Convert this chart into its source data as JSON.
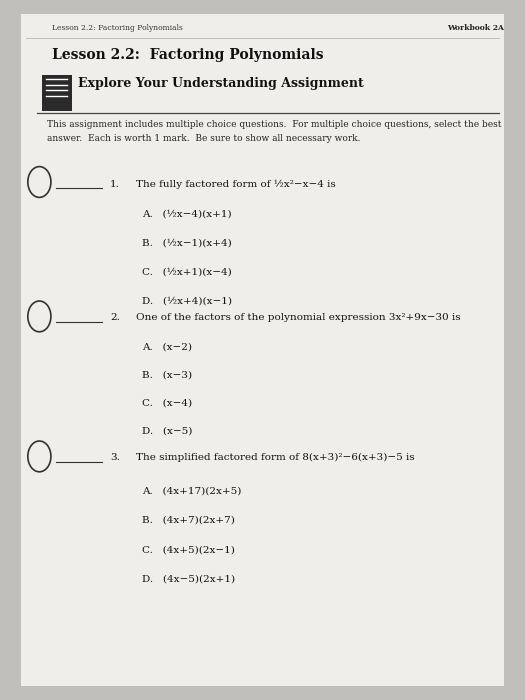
{
  "bg_color": "#c0bfbc",
  "paper_color": "#f0eeea",
  "header_text_left": "Lesson 2.2: Factoring Polynomials",
  "header_text_right": "Workbook 2A",
  "title": "Lesson 2.2:  Factoring Polynomials",
  "section_title": "Explore Your Understanding Assignment",
  "intro_text": "This assignment includes multiple choice questions.  For multiple choice questions, select the best\nanswer.  Each is worth 1 mark.  Be sure to show all necessary work.",
  "q1_num": "1.",
  "q1_text": "The fully factored form of ½x²−x−4 is",
  "q1_choices": [
    "A.   (½x−4)(x+1)",
    "B.   (½x−1)(x+4)",
    "C.   (½x+1)(x−4)",
    "D.   (½x+4)(x−1)"
  ],
  "q2_num": "2.",
  "q2_text": "One of the factors of the polynomial expression 3x²+9x−30 is",
  "q2_choices": [
    "A.   (x−2)",
    "B.   (x−3)",
    "C.   (x−4)",
    "D.   (x−5)"
  ],
  "q3_num": "3.",
  "q3_text": "The simplified factored form of 8(x+3)²−6(x+3)−5 is",
  "q3_choices": [
    "A.   (4x+17)(2x+5)",
    "B.   (4x+7)(2x+7)",
    "C.   (4x+5)(2x−1)",
    "D.   (4x−5)(2x+1)"
  ]
}
